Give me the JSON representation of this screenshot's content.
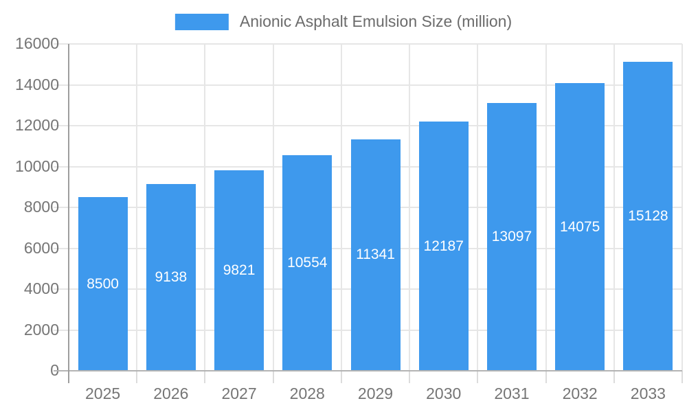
{
  "chart_data": {
    "type": "bar",
    "title": "Anionic Asphalt Emulsion Size (million)",
    "legend": {
      "label": "Anionic Asphalt Emulsion Size (million)",
      "position": "top-center",
      "swatch_color": "#3E99ED"
    },
    "categories": [
      "2025",
      "2026",
      "2027",
      "2028",
      "2029",
      "2030",
      "2031",
      "2032",
      "2033"
    ],
    "values": [
      8500,
      9138,
      9821,
      10554,
      11341,
      12187,
      13097,
      14075,
      15128
    ],
    "xlabel": "",
    "ylabel": "",
    "ylim": [
      0,
      16000
    ],
    "ytick_step": 2000,
    "yticks": [
      0,
      2000,
      4000,
      6000,
      8000,
      10000,
      12000,
      14000,
      16000
    ],
    "grid": "both",
    "bar_color": "#3E99ED",
    "bar_label_color": "#FFFFFF",
    "grid_color": "#E6E6E6",
    "axis_line_color": "#9E9E9E",
    "x_axis_line_color": "#B3B3B3",
    "axis_text_color": "#757575"
  }
}
